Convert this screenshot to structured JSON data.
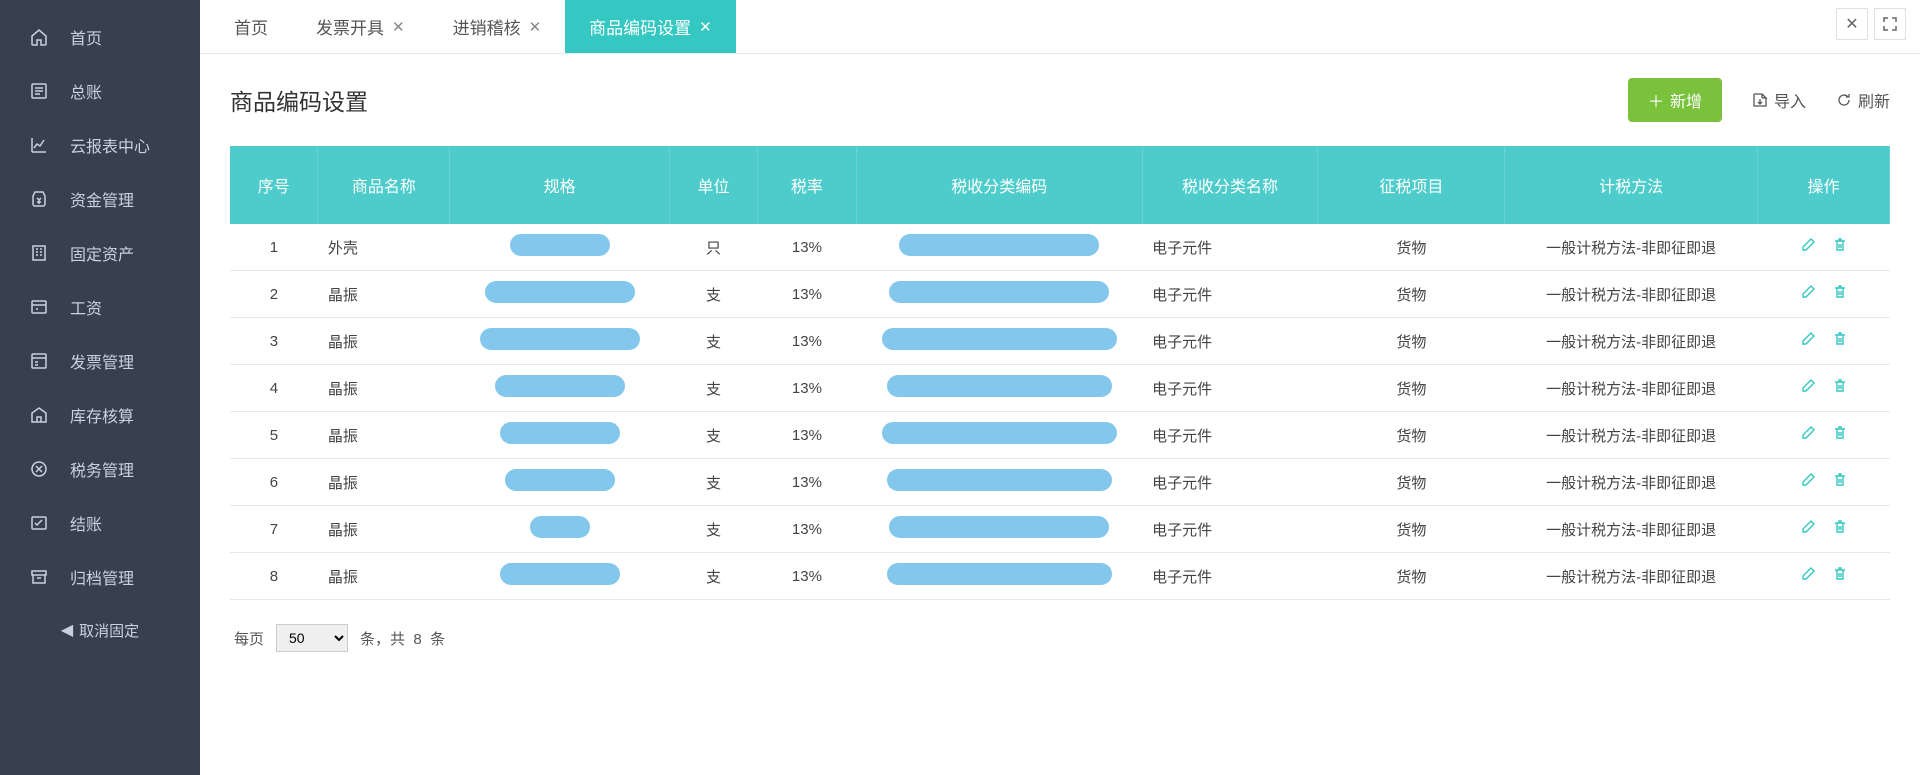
{
  "sidebar": {
    "items": [
      {
        "label": "首页",
        "icon": "home"
      },
      {
        "label": "总账",
        "icon": "ledger"
      },
      {
        "label": "云报表中心",
        "icon": "chart"
      },
      {
        "label": "资金管理",
        "icon": "money"
      },
      {
        "label": "固定资产",
        "icon": "building"
      },
      {
        "label": "工资",
        "icon": "salary"
      },
      {
        "label": "发票管理",
        "icon": "invoice"
      },
      {
        "label": "库存核算",
        "icon": "inventory"
      },
      {
        "label": "税务管理",
        "icon": "tax"
      },
      {
        "label": "结账",
        "icon": "close-account"
      },
      {
        "label": "归档管理",
        "icon": "archive"
      }
    ],
    "footer_label": "取消固定"
  },
  "tabs": [
    {
      "label": "首页",
      "closable": false,
      "active": false
    },
    {
      "label": "发票开具",
      "closable": true,
      "active": false
    },
    {
      "label": "进销稽核",
      "closable": true,
      "active": false
    },
    {
      "label": "商品编码设置",
      "closable": true,
      "active": true
    }
  ],
  "page": {
    "title": "商品编码设置",
    "add_label": "新增",
    "import_label": "导入",
    "refresh_label": "刷新"
  },
  "table": {
    "headers": [
      "序号",
      "商品名称",
      "规格",
      "单位",
      "税率",
      "税收分类编码",
      "税收分类名称",
      "征税项目",
      "计税方法",
      "操作"
    ],
    "redacted_color": "#83c7ed",
    "header_bg": "#4dcccb",
    "rows": [
      {
        "seq": "1",
        "name": "外壳",
        "spec_width": 100,
        "unit": "只",
        "rate": "13%",
        "code_width": 200,
        "cat": "电子元件",
        "item": "货物",
        "method": "一般计税方法-非即征即退"
      },
      {
        "seq": "2",
        "name": "晶振",
        "spec_width": 150,
        "unit": "支",
        "rate": "13%",
        "code_width": 220,
        "cat": "电子元件",
        "item": "货物",
        "method": "一般计税方法-非即征即退"
      },
      {
        "seq": "3",
        "name": "晶振",
        "spec_width": 160,
        "unit": "支",
        "rate": "13%",
        "code_width": 235,
        "cat": "电子元件",
        "item": "货物",
        "method": "一般计税方法-非即征即退"
      },
      {
        "seq": "4",
        "name": "晶振",
        "spec_width": 130,
        "unit": "支",
        "rate": "13%",
        "code_width": 225,
        "cat": "电子元件",
        "item": "货物",
        "method": "一般计税方法-非即征即退"
      },
      {
        "seq": "5",
        "name": "晶振",
        "spec_width": 120,
        "unit": "支",
        "rate": "13%",
        "code_width": 235,
        "cat": "电子元件",
        "item": "货物",
        "method": "一般计税方法-非即征即退"
      },
      {
        "seq": "6",
        "name": "晶振",
        "spec_width": 110,
        "unit": "支",
        "rate": "13%",
        "code_width": 225,
        "cat": "电子元件",
        "item": "货物",
        "method": "一般计税方法-非即征即退"
      },
      {
        "seq": "7",
        "name": "晶振",
        "spec_width": 60,
        "unit": "支",
        "rate": "13%",
        "code_width": 220,
        "cat": "电子元件",
        "item": "货物",
        "method": "一般计税方法-非即征即退"
      },
      {
        "seq": "8",
        "name": "晶振",
        "spec_width": 120,
        "unit": "支",
        "rate": "13%",
        "code_width": 225,
        "cat": "电子元件",
        "item": "货物",
        "method": "一般计税方法-非即征即退"
      }
    ]
  },
  "pagination": {
    "per_page_label_pre": "每页",
    "per_page_value": "50",
    "per_page_label_post": "条，共",
    "total": "8",
    "total_suffix": "条"
  },
  "colors": {
    "sidebar_bg": "#384050",
    "accent": "#35c7c2",
    "add_btn": "#7ac23c"
  }
}
